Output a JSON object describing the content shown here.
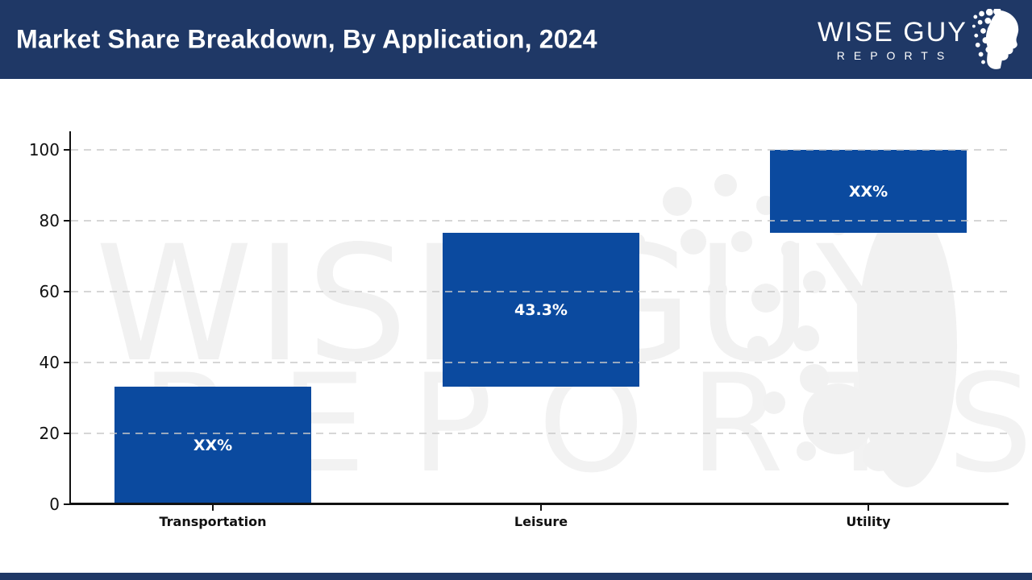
{
  "header": {
    "title": "Market Share Breakdown, By Application, 2024",
    "logo": {
      "line1": "WISE GUY",
      "line2": "REPORTS"
    }
  },
  "watermark": {
    "line1": "WISE GUY",
    "line2": "REPORTS"
  },
  "colors": {
    "header_bg": "#1f3866",
    "footer_bg": "#1f3866",
    "bar": "#0b4a9f",
    "bar_label_text": "#ffffff",
    "grid": "#d9d9d9",
    "axis": "#111111",
    "watermark": "#f1f1f1"
  },
  "chart_data": {
    "type": "bar",
    "variant": "waterfall",
    "title": "Market Share Breakdown, By Application, 2024",
    "categories": [
      "Transportation",
      "Leisure",
      "Utility"
    ],
    "series": [
      {
        "name": "Market share (%)",
        "segments": [
          {
            "category": "Transportation",
            "start": 0,
            "end": 33.2,
            "value_label": "XX%"
          },
          {
            "category": "Leisure",
            "start": 33.2,
            "end": 76.5,
            "value_label": "43.3%"
          },
          {
            "category": "Utility",
            "start": 76.5,
            "end": 100,
            "value_label": "XX%"
          }
        ]
      }
    ],
    "xlabel": "",
    "ylabel": "",
    "yticks": [
      0,
      20,
      40,
      60,
      80,
      100
    ],
    "ylim": [
      0,
      105
    ],
    "grid": "horizontal-dashed-over-bars",
    "legend": "none"
  }
}
